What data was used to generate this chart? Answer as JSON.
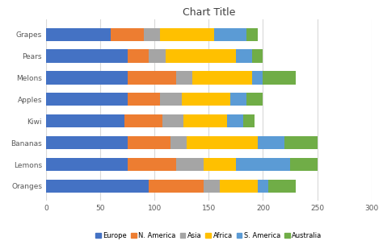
{
  "title": "Chart Title",
  "categories": [
    "Oranges",
    "Lemons",
    "Bananas",
    "Kiwi",
    "Apples",
    "Melons",
    "Pears",
    "Grapes"
  ],
  "series": {
    "Europe": [
      95,
      75,
      75,
      72,
      75,
      75,
      75,
      60
    ],
    "N. America": [
      50,
      45,
      40,
      35,
      30,
      45,
      20,
      30
    ],
    "Asia": [
      15,
      25,
      15,
      20,
      20,
      15,
      15,
      15
    ],
    "Africa": [
      35,
      30,
      65,
      40,
      45,
      55,
      65,
      50
    ],
    "S. America": [
      10,
      50,
      25,
      15,
      15,
      10,
      15,
      30
    ],
    "Australia": [
      25,
      25,
      30,
      10,
      15,
      30,
      10,
      10
    ]
  },
  "colors": {
    "Europe": "#4472C4",
    "N. America": "#ED7D31",
    "Asia": "#A5A5A5",
    "Africa": "#FFC000",
    "S. America": "#5B9BD5",
    "Australia": "#70AD47"
  },
  "xlim": [
    0,
    300
  ],
  "xticks": [
    0,
    50,
    100,
    150,
    200,
    250,
    300
  ],
  "background_color": "#FFFFFF",
  "grid_color": "#D9D9D9",
  "title_fontsize": 9,
  "label_fontsize": 6.5,
  "tick_fontsize": 6.5,
  "legend_fontsize": 6.0,
  "bar_height": 0.6
}
